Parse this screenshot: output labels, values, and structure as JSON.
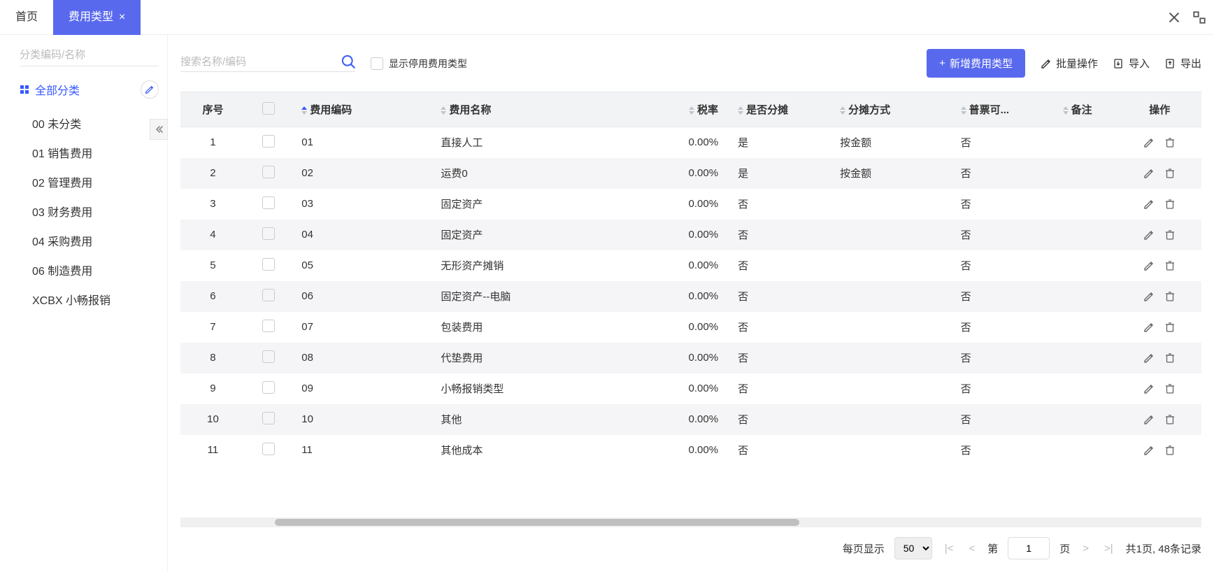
{
  "tabs": {
    "home": "首页",
    "active": "费用类型"
  },
  "sidebar": {
    "search_ph": "分类编码/名称",
    "root": "全部分类",
    "items": [
      "00 未分类",
      "01 销售费用",
      "02 管理费用",
      "03 财务费用",
      "04 采购费用",
      "06 制造费用",
      "XCBX 小畅报销"
    ]
  },
  "toolbar": {
    "search_ph": "搜索名称/编码",
    "show_disabled": "显示停用费用类型",
    "add": "新增费用类型",
    "batch": "批量操作",
    "import": "导入",
    "export": "导出"
  },
  "table": {
    "headers": {
      "idx": "序号",
      "code": "费用编码",
      "name": "费用名称",
      "rate": "税率",
      "ft": "是否分摊",
      "ftm": "分摊方式",
      "pp": "普票可...",
      "bz": "备注",
      "ops": "操作"
    },
    "rows": [
      {
        "idx": "1",
        "code": "01",
        "name": "直接人工",
        "rate": "0.00%",
        "ft": "是",
        "ftm": "按金额",
        "pp": "否"
      },
      {
        "idx": "2",
        "code": "02",
        "name": "运费0",
        "rate": "0.00%",
        "ft": "是",
        "ftm": "按金额",
        "pp": "否"
      },
      {
        "idx": "3",
        "code": "03",
        "name": "固定资产",
        "rate": "0.00%",
        "ft": "否",
        "ftm": "",
        "pp": "否"
      },
      {
        "idx": "4",
        "code": "04",
        "name": "固定资产",
        "rate": "0.00%",
        "ft": "否",
        "ftm": "",
        "pp": "否"
      },
      {
        "idx": "5",
        "code": "05",
        "name": "无形资产摊销",
        "rate": "0.00%",
        "ft": "否",
        "ftm": "",
        "pp": "否"
      },
      {
        "idx": "6",
        "code": "06",
        "name": "固定资产--电脑",
        "rate": "0.00%",
        "ft": "否",
        "ftm": "",
        "pp": "否"
      },
      {
        "idx": "7",
        "code": "07",
        "name": "包装费用",
        "rate": "0.00%",
        "ft": "否",
        "ftm": "",
        "pp": "否"
      },
      {
        "idx": "8",
        "code": "08",
        "name": "代垫费用",
        "rate": "0.00%",
        "ft": "否",
        "ftm": "",
        "pp": "否"
      },
      {
        "idx": "9",
        "code": "09",
        "name": "小畅报销类型",
        "rate": "0.00%",
        "ft": "否",
        "ftm": "",
        "pp": "否"
      },
      {
        "idx": "10",
        "code": "10",
        "name": "其他",
        "rate": "0.00%",
        "ft": "否",
        "ftm": "",
        "pp": "否"
      },
      {
        "idx": "11",
        "code": "11",
        "name": "其他成本",
        "rate": "0.00%",
        "ft": "否",
        "ftm": "",
        "pp": "否"
      }
    ]
  },
  "pager": {
    "per_page_label": "每页显示",
    "per_page": "50",
    "page_prefix": "第",
    "page_value": "1",
    "page_suffix": "页",
    "total": "共1页, 48条记录"
  }
}
